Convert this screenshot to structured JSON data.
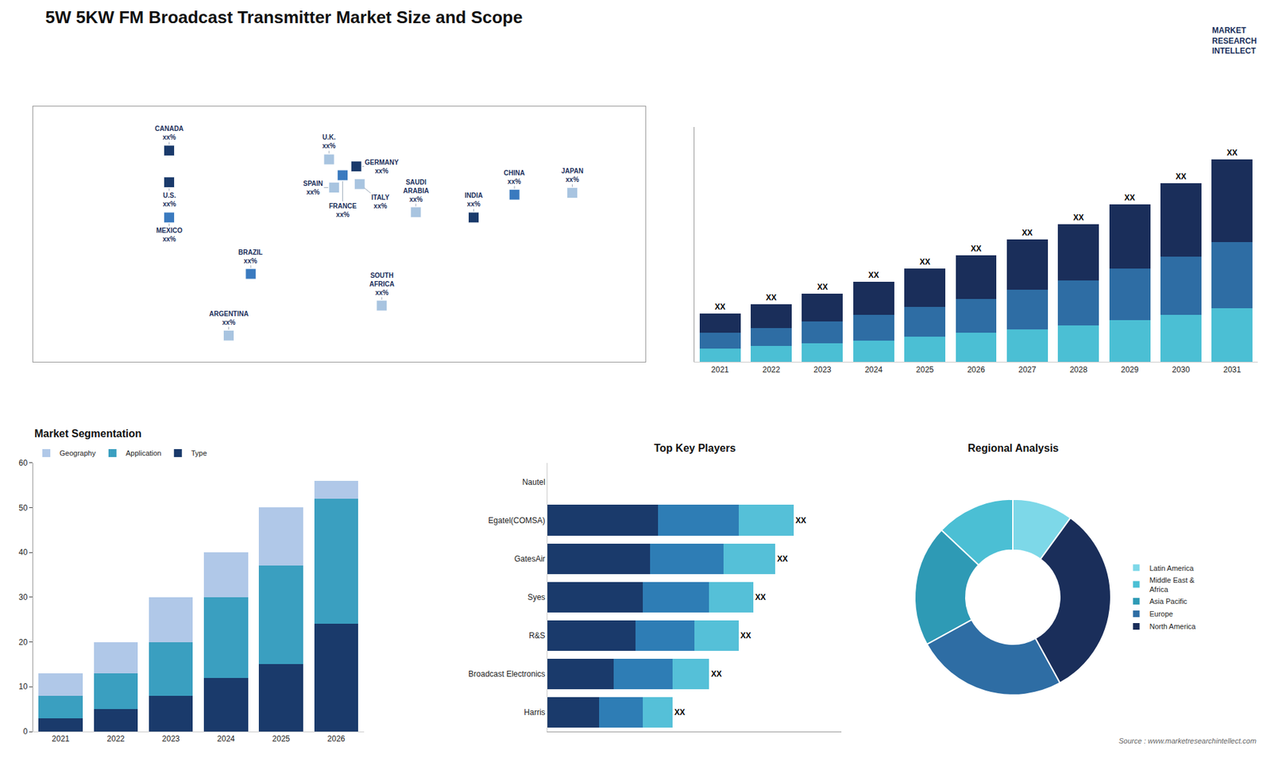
{
  "chart_data": [
    {
      "type": "scatter",
      "marker": "square",
      "x": [
        -100,
        -100,
        -100,
        -52,
        -65,
        -6,
        2,
        -3,
        10,
        12,
        45,
        25,
        103,
        79,
        137
      ],
      "values": [
        60,
        42,
        22,
        -10,
        -45,
        55,
        46,
        39,
        51,
        41,
        25,
        -28,
        35,
        22,
        36
      ],
      "colors": [
        "#1a3a6b",
        "#1a3a6b",
        "#3a7abf",
        "#3a7abf",
        "#a8c4e0",
        "#a8c4e0",
        "#3a7abf",
        "#a8c4e0",
        "#1a3a6b",
        "#a8c4e0",
        "#a8c4e0",
        "#a8c4e0",
        "#3a7abf",
        "#1a3a6b",
        "#a8c4e0"
      ],
      "annotations": [
        "CANADA\nxx%",
        "U.S.\nxx%",
        "MEXICO\nxx%",
        "BRAZIL\nxx%",
        "ARGENTINA\nxx%",
        "U.K.\nxx%",
        "FRANCE\nxx%",
        "SPAIN\nxx%",
        "GERMANY\nxx%",
        "ITALY\nxx%",
        "SAUDI\nARABIA\nxx%",
        "SOUTH\nAFRICA\nxx%",
        "CHINA\nxx%",
        "INDIA\nxx%",
        "JAPAN\nxx%"
      ],
      "xlim": [
        -180,
        180
      ],
      "ylim": [
        -60,
        85
      ],
      "tick_labels": false,
      "grid": false
    },
    {
      "type": "bar",
      "stacked": true,
      "title": "5W 5KW FM Broadcast Transmitter Market Size and Scope",
      "annotations": [
        "MARKET\nRESEARCH\nINTELLECT",
        "Source : www.marketresearchintellect.com"
      ],
      "categories": [
        "2021",
        "2022",
        "2023",
        "2024",
        "2025",
        "2026",
        "2027",
        "2028",
        "2029",
        "2030",
        "2031"
      ],
      "series": [
        {
          "color": "#4bbfd4",
          "values": [
            1.0,
            1.2,
            1.4,
            1.6,
            1.9,
            2.2,
            2.5,
            2.8,
            3.2,
            3.6,
            4.1
          ]
        },
        {
          "color": "#2e6da4",
          "values": [
            1.2,
            1.4,
            1.7,
            2.0,
            2.3,
            2.6,
            3.0,
            3.4,
            3.9,
            4.4,
            5.0
          ]
        },
        {
          "color": "#1a2e5a",
          "values": [
            1.5,
            1.8,
            2.1,
            2.5,
            2.9,
            3.3,
            3.8,
            4.3,
            4.9,
            5.6,
            6.3
          ],
          "value_labels": [
            "XX",
            "XX",
            "XX",
            "XX",
            "XX",
            "XX",
            "XX",
            "XX",
            "XX",
            "XX",
            "XX"
          ]
        }
      ],
      "data_labels": true,
      "ylim": [
        0,
        17.9
      ],
      "tick_labels": "x",
      "grid": false
    },
    {
      "type": "bar",
      "stacked": true,
      "title": "Market Segmentation",
      "categories": [
        "2021",
        "2022",
        "2023",
        "2024",
        "2025",
        "2026"
      ],
      "series": [
        {
          "name": "Type",
          "color": "#1a3a6b",
          "values": [
            3,
            5,
            8,
            12,
            15,
            24
          ]
        },
        {
          "name": "Application",
          "color": "#3a9fc0",
          "values": [
            5,
            8,
            12,
            18,
            22,
            28
          ]
        },
        {
          "name": "Geography",
          "color": "#b0c8e8",
          "values": [
            5,
            7,
            10,
            10,
            13,
            4
          ]
        }
      ],
      "ylim": [
        0,
        60
      ],
      "yticks": [
        0,
        10,
        20,
        30,
        40,
        50,
        60
      ],
      "legend": "top",
      "grid": false
    },
    {
      "type": "bar",
      "orientation": "horizontal",
      "stacked": true,
      "title": "Top Key Players",
      "categories": [
        "Nautel",
        "Egatel(COMSA)",
        "GatesAir",
        "Syes",
        "R&S",
        "Broadcast Electronics",
        "Harris"
      ],
      "series": [
        {
          "color": "#1a3a6b",
          "values": [
            0,
            30,
            28,
            26,
            24,
            18,
            14
          ]
        },
        {
          "color": "#2e7db5",
          "values": [
            0,
            22,
            20,
            18,
            16,
            16,
            12
          ]
        },
        {
          "color": "#55c0d8",
          "values": [
            0,
            15,
            14,
            12,
            12,
            10,
            8
          ],
          "value_labels": [
            null,
            "XX",
            "XX",
            "XX",
            "XX",
            "XX",
            "XX"
          ]
        }
      ],
      "data_labels": true,
      "xlim": [
        0,
        80
      ],
      "tick_labels": "y",
      "grid": false
    },
    {
      "type": "pie",
      "title": "Regional Analysis",
      "categories": [
        "Latin America",
        "Middle East &\nAfrica",
        "Asia Pacific",
        "Europe",
        "North America"
      ],
      "values": [
        10,
        13,
        20,
        25,
        32
      ],
      "colors": [
        "#7dd8e8",
        "#4bbfd4",
        "#2e9ab5",
        "#2e6da4",
        "#1a2e5a"
      ],
      "legend": "right"
    }
  ]
}
